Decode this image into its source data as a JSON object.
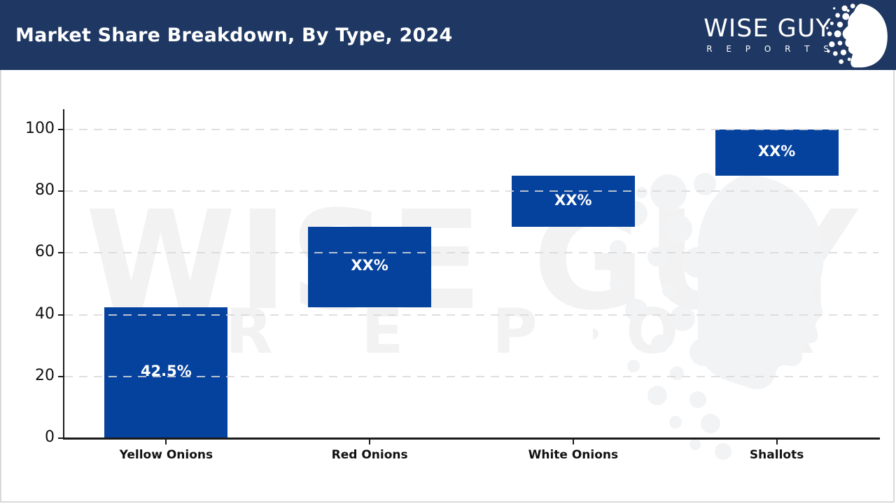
{
  "header": {
    "title": "Market Share Breakdown, By Type, 2024",
    "logo": {
      "line1": "WISE GUY",
      "line2": "R E P O R T S"
    }
  },
  "watermark": {
    "line1": "WISE GUY",
    "line2": "R E P O R T S"
  },
  "chart_data": {
    "type": "bar",
    "subtype": "waterfall",
    "title": "Market Share Breakdown, By Type, 2024",
    "categories": [
      "Yellow Onions",
      "Red Onions",
      "White Onions",
      "Shallots"
    ],
    "bars": [
      {
        "category": "Yellow Onions",
        "start": 0,
        "end": 42.5,
        "label": "42.5%"
      },
      {
        "category": "Red Onions",
        "start": 42.5,
        "end": 68.5,
        "label": "XX%"
      },
      {
        "category": "White Onions",
        "start": 68.5,
        "end": 85,
        "label": "XX%"
      },
      {
        "category": "Shallots",
        "start": 85,
        "end": 100,
        "label": "XX%"
      }
    ],
    "yticks": [
      0,
      20,
      40,
      60,
      80,
      100
    ],
    "ylim": [
      0,
      105
    ],
    "grid": "horizontal dashed",
    "legend": "none",
    "xlabel": "",
    "ylabel": "",
    "bar_color": "#05429D",
    "bar_label_color": "#ffffff"
  },
  "colors": {
    "header_bg": "#1F3863",
    "bar": "#05429D",
    "axis": "#1a1a1a",
    "grid": "#d9d9d9",
    "watermark": "#f2f2f2",
    "page_border": "#d9d9d9"
  }
}
